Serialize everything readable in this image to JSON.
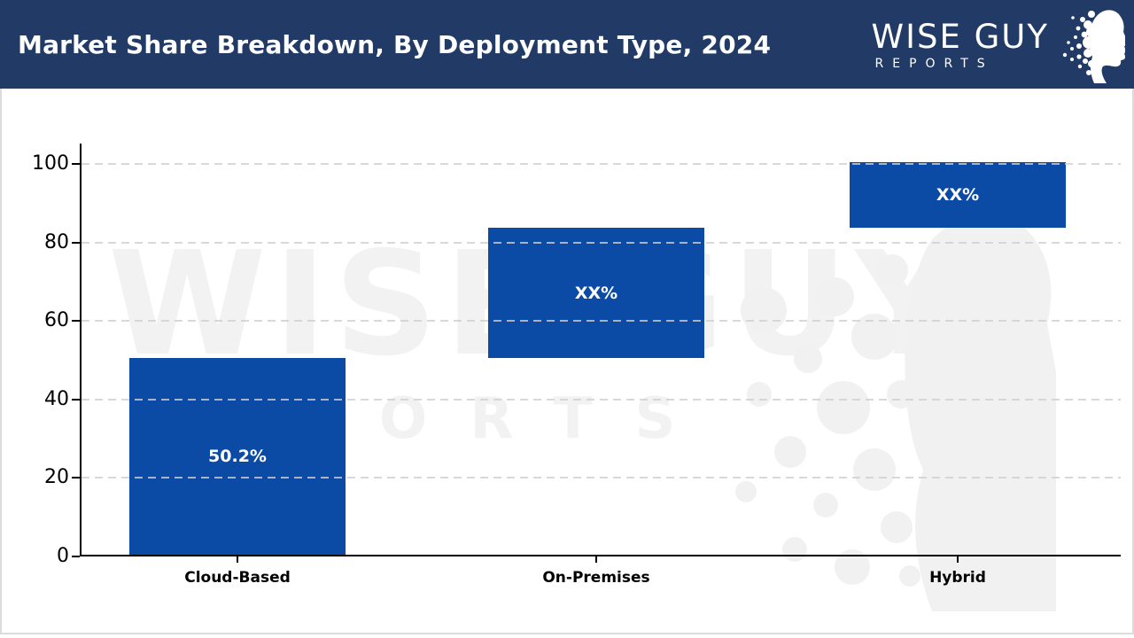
{
  "header": {
    "title": "Market Share Breakdown, By Deployment Type, 2024",
    "logo_line1": "WISE GUY",
    "logo_line2": "REPORTS"
  },
  "watermark": {
    "line1": "WISE GUY",
    "line2": "REPORTS"
  },
  "colors": {
    "header_bg": "#213a66",
    "bar": "#0b4aa5",
    "grid": "#cfcfcf",
    "axis": "#000000",
    "bar_label": "#ffffff",
    "watermark": "#f2f2f2"
  },
  "chart_data": {
    "type": "bar",
    "subtype": "stacked-waterfall",
    "title": "Market Share Breakdown, By Deployment Type, 2024",
    "categories": [
      "Cloud-Based",
      "On-Premises",
      "Hybrid"
    ],
    "segments": [
      {
        "category": "Cloud-Based",
        "start": 0,
        "end": 50.2,
        "label": "50.2%"
      },
      {
        "category": "On-Premises",
        "start": 50.2,
        "end": 83.2,
        "label": "XX%"
      },
      {
        "category": "Hybrid",
        "start": 83.2,
        "end": 100,
        "label": "XX%"
      }
    ],
    "values_pct": [
      50.2,
      33.0,
      16.8
    ],
    "y_ticks": [
      0,
      20,
      40,
      60,
      80,
      100
    ],
    "ylim": [
      0,
      105.2
    ],
    "xlabel": "",
    "ylabel": "",
    "grid": "horizontal-dashed",
    "legend": "none"
  }
}
